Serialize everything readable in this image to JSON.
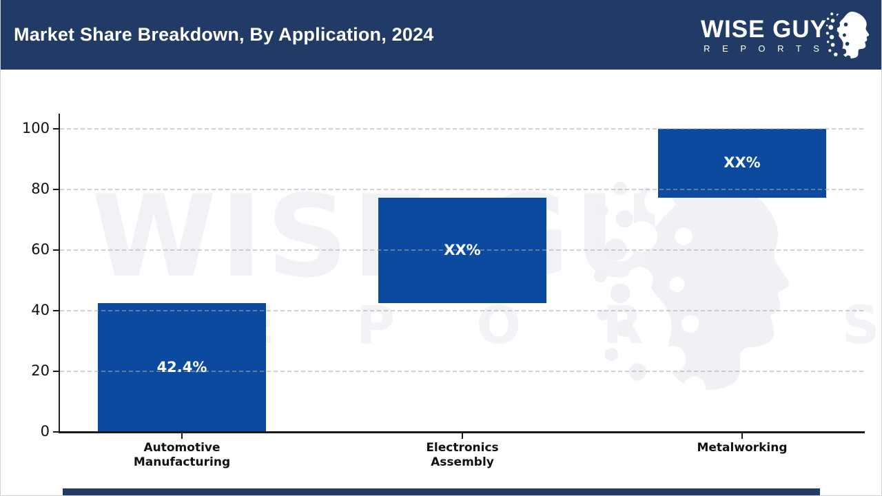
{
  "header": {
    "title": "Market Share Breakdown, By Application, 2024",
    "logo": {
      "name": "WISE GUY",
      "subtitle": "R E P O R T S"
    }
  },
  "watermark": {
    "line1": "WISE GUY",
    "line2": "R E P O R T S"
  },
  "chart_data": {
    "type": "bar",
    "subtype": "waterfall-step",
    "title": "Market Share Breakdown, By Application, 2024",
    "categories": [
      "Automotive Manufacturing",
      "Electronics Assembly",
      "Metalworking"
    ],
    "category_lines": [
      [
        "Automotive",
        "Manufacturing"
      ],
      [
        "Electronics",
        "Assembly"
      ],
      [
        "Metalworking",
        ""
      ]
    ],
    "segments": [
      {
        "category": "Automotive Manufacturing",
        "start": 0,
        "end": 42.4,
        "label": "42.4%"
      },
      {
        "category": "Electronics Assembly",
        "start": 42.4,
        "end": 77.2,
        "label": "XX%"
      },
      {
        "category": "Metalworking",
        "start": 77.2,
        "end": 100,
        "label": "XX%"
      }
    ],
    "y_ticks": [
      0,
      20,
      40,
      60,
      80,
      100
    ],
    "ylim": [
      0,
      105
    ],
    "xlabel": "",
    "ylabel": "",
    "grid": "horizontal-dashed",
    "legend": "none",
    "bar_color": "#0b4a9e",
    "header_color": "#213a66",
    "gridline_color": "#d6d6d6"
  }
}
